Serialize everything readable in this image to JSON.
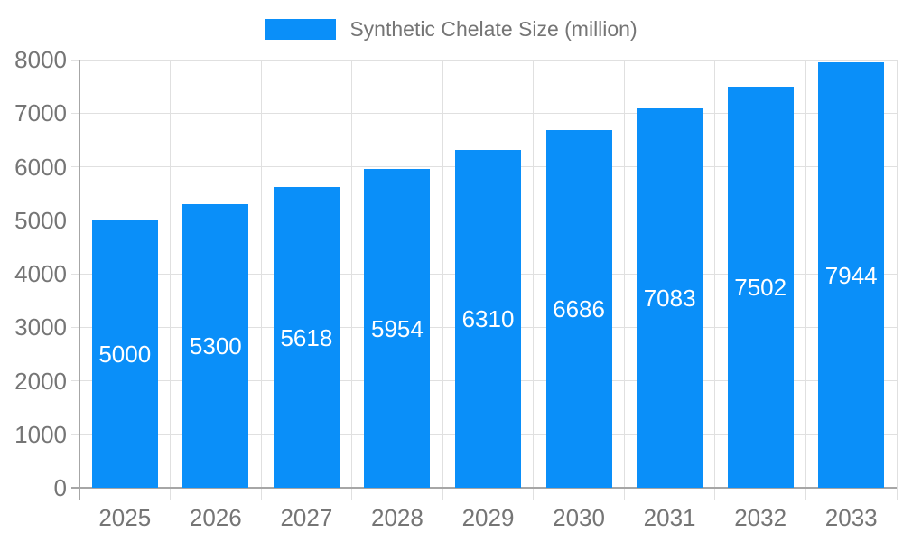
{
  "legend": {
    "label": "Synthetic Chelate Size (million)"
  },
  "colors": {
    "background": "#ffffff",
    "bar": "#0a8ff9",
    "axis": "#a6a6a6",
    "gridline": "#e0e0e0",
    "tick_text": "#757575",
    "legend_text": "#757575",
    "bar_label_text": "#ffffff"
  },
  "chart_data": {
    "type": "bar",
    "title": "",
    "categories": [
      "2025",
      "2026",
      "2027",
      "2028",
      "2029",
      "2030",
      "2031",
      "2032",
      "2033"
    ],
    "series": [
      {
        "name": "Synthetic Chelate Size (million)",
        "values": [
          5000,
          5300,
          5618,
          5954,
          6310,
          6686,
          7083,
          7502,
          7944
        ]
      }
    ],
    "xlabel": "",
    "ylabel": "",
    "ylim": [
      0,
      8000
    ],
    "ytick_step": 1000,
    "yticks": [
      0,
      1000,
      2000,
      3000,
      4000,
      5000,
      6000,
      7000,
      8000
    ],
    "grid": true,
    "legend_position": "top",
    "value_labels": "inside-center"
  }
}
